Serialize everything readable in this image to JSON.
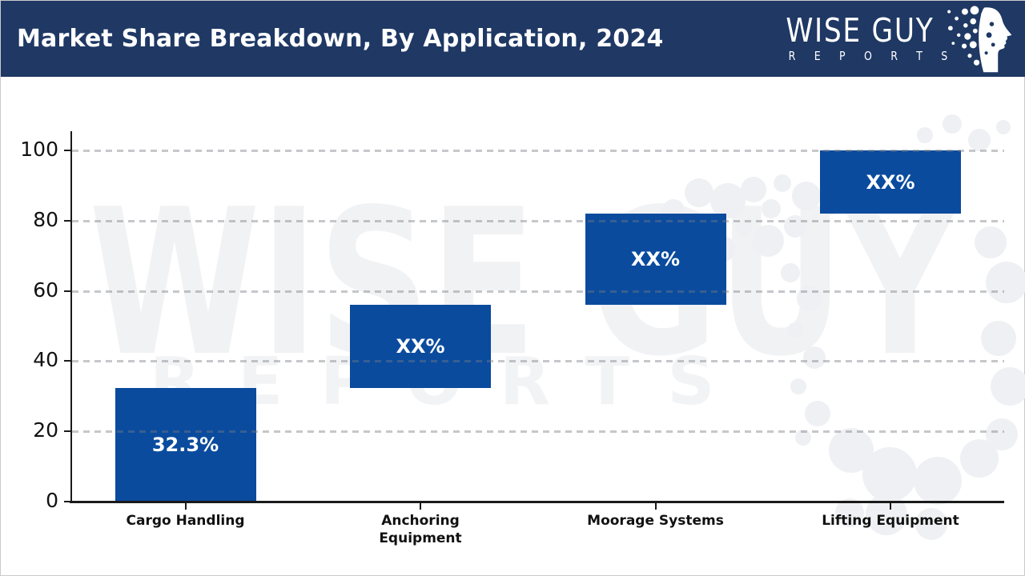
{
  "header": {
    "title": "Market Share Breakdown, By Application, 2024",
    "logo": {
      "line1": "WISE GUY",
      "line2": "R E P O R T S"
    }
  },
  "watermark": {
    "line1": "WISE GUY",
    "line2": "REPORTS"
  },
  "chart_data": {
    "type": "bar",
    "subtype": "waterfall",
    "title": "Market Share Breakdown, By Application, 2024",
    "categories": [
      "Cargo Handling",
      "Anchoring\nEquipment",
      "Moorage Systems",
      "Lifting Equipment"
    ],
    "segments": [
      {
        "category": "Cargo Handling",
        "start": 0,
        "end": 32.3,
        "label": "32.3%"
      },
      {
        "category": "Anchoring Equipment",
        "start": 32.3,
        "end": 56.0,
        "label": "XX%"
      },
      {
        "category": "Moorage Systems",
        "start": 56.0,
        "end": 82.0,
        "label": "XX%"
      },
      {
        "category": "Lifting Equipment",
        "start": 82.0,
        "end": 100.0,
        "label": "XX%"
      }
    ],
    "yticks": [
      0,
      20,
      40,
      60,
      80,
      100
    ],
    "ylim": [
      0,
      105
    ],
    "xlabel": "",
    "ylabel": "",
    "grid": "horizontal-dashed",
    "legend": "none",
    "colors": {
      "bar": "#0a4b9e",
      "header_bg": "#1f3864",
      "grid": "#cfd1d4",
      "axis": "#1a1a1a",
      "watermark": "#f1f2f4",
      "bar_label": "#ffffff",
      "title_text": "#ffffff"
    }
  }
}
